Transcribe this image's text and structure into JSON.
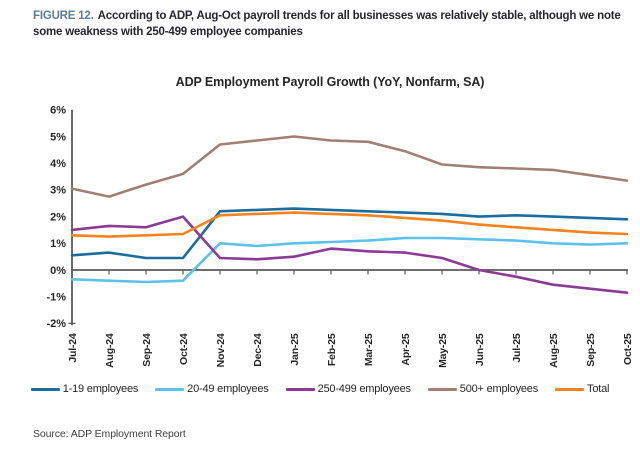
{
  "figure": {
    "label": "FIGURE 12.",
    "caption": "According to ADP, Aug-Oct payroll trends for all businesses was relatively stable, although we note some weakness with 250-499 employee companies",
    "source": "Source: ADP Employment Report"
  },
  "colors": {
    "figure_label": "#5d7e95",
    "caption_text": "#26262e",
    "axis": "#595959",
    "tick_label": "#262626"
  },
  "chart_data": {
    "type": "line",
    "title": "ADP Employment Payroll Growth (YoY, Nonfarm, SA)",
    "categories": [
      "Jul-24",
      "Aug-24",
      "Sep-24",
      "Oct-24",
      "Nov-24",
      "Dec-24",
      "Jan-25",
      "Feb-25",
      "Mar-25",
      "Apr-25",
      "May-25",
      "Jun-25",
      "Jul-25",
      "Aug-25",
      "Sep-25",
      "Oct-25"
    ],
    "series": [
      {
        "name": "1-19 employees",
        "color": "#1b6d9e",
        "values": [
          0.55,
          0.65,
          0.45,
          0.45,
          2.2,
          2.25,
          2.3,
          2.25,
          2.2,
          2.15,
          2.1,
          2.0,
          2.05,
          2.0,
          1.95,
          1.9
        ]
      },
      {
        "name": "20-49 employees",
        "color": "#5bc2e9",
        "values": [
          -0.35,
          -0.4,
          -0.45,
          -0.4,
          1.0,
          0.9,
          1.0,
          1.05,
          1.1,
          1.2,
          1.2,
          1.15,
          1.1,
          1.0,
          0.95,
          1.0
        ]
      },
      {
        "name": "250-499 employees",
        "color": "#8c3b94",
        "values": [
          1.5,
          1.65,
          1.6,
          2.0,
          0.45,
          0.4,
          0.5,
          0.8,
          0.7,
          0.65,
          0.45,
          0.0,
          -0.25,
          -0.55,
          -0.7,
          -0.85
        ]
      },
      {
        "name": "500+ employees",
        "color": "#a08073",
        "values": [
          3.05,
          2.75,
          3.2,
          3.6,
          4.7,
          4.85,
          5.0,
          4.85,
          4.8,
          4.45,
          3.95,
          3.85,
          3.8,
          3.75,
          3.55,
          3.35
        ]
      },
      {
        "name": "Total",
        "color": "#f58220",
        "values": [
          1.3,
          1.25,
          1.3,
          1.35,
          2.05,
          2.1,
          2.15,
          2.1,
          2.05,
          1.95,
          1.85,
          1.7,
          1.6,
          1.5,
          1.4,
          1.35
        ]
      }
    ],
    "ylim": [
      -2,
      6
    ],
    "ytick_step": 1,
    "ytick_suffix": "%",
    "grid": false,
    "legend_position": "bottom"
  }
}
